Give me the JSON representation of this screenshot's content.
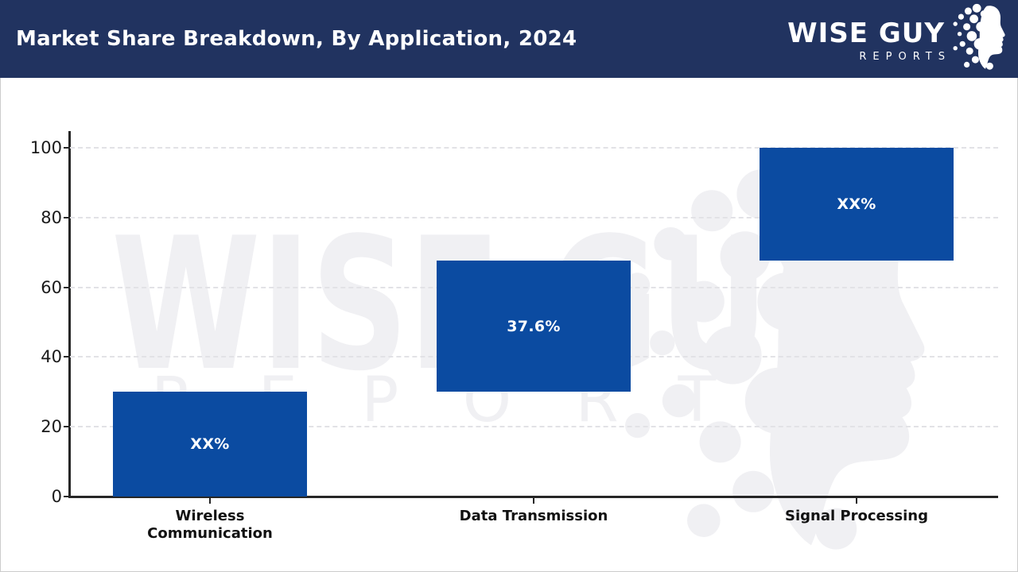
{
  "header": {
    "title": "Market Share Breakdown, By Application, 2024",
    "logo": {
      "name": "WISE GUY",
      "subtitle": "REPORTS"
    }
  },
  "watermark": {
    "line1": "WISE GUY",
    "line2": "REPORTS"
  },
  "colors": {
    "header_bg": "#213360",
    "bar": "#0b4ba1",
    "axis": "#262626",
    "grid": "#e2e2e6",
    "watermark": "#f0f0f3",
    "body_border": "#cccccc",
    "bar_label": "#ffffff"
  },
  "chart_data": {
    "type": "bar",
    "variant": "floating-waterfall",
    "title": "Market Share Breakdown, By Application, 2024",
    "categories": [
      "Wireless Communication",
      "Data Transmission",
      "Signal Processing"
    ],
    "bars": [
      {
        "category": "Wireless Communication",
        "start": 0,
        "end": 30,
        "label": "XX%"
      },
      {
        "category": "Data Transmission",
        "start": 30,
        "end": 67.6,
        "label": "37.6%"
      },
      {
        "category": "Signal Processing",
        "start": 67.6,
        "end": 100,
        "label": "XX%"
      }
    ],
    "xlabel": "",
    "ylabel": "",
    "ylim": [
      0,
      105
    ],
    "yticks": [
      0,
      20,
      40,
      60,
      80,
      100
    ],
    "grid": "horizontal-dashed",
    "legend": "none",
    "bar_color": "#0b4ba1",
    "value_label_color": "#ffffff"
  }
}
